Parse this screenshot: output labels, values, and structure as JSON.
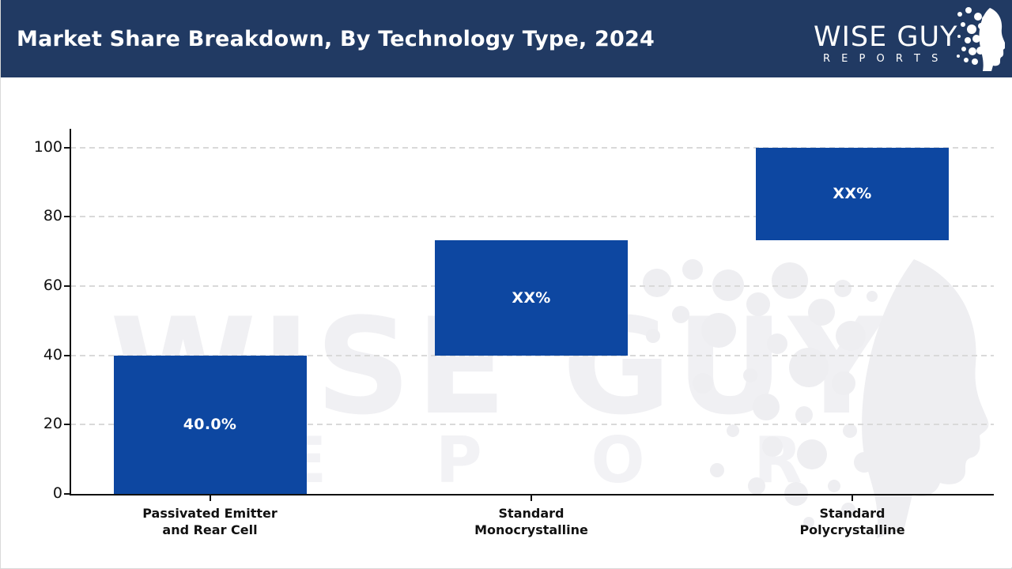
{
  "header": {
    "title": "Market Share Breakdown, By Technology Type, 2024",
    "logo": {
      "line1": "WISE GUY",
      "line2": "R E P O R T S"
    }
  },
  "watermark": {
    "line1": "WISE GUY",
    "line2": "R E P O R T S"
  },
  "colors": {
    "header_bg": "#213A63",
    "bar": "#0D47A1",
    "bar_label": "#ffffff",
    "grid": "#d9d9d9",
    "axis": "#111111",
    "watermark": "#f0f0f3",
    "border": "#d9d9d9"
  },
  "chart_data": {
    "type": "bar",
    "subtype": "waterfall-stacked-percent",
    "title": "Market Share Breakdown, By Technology Type, 2024",
    "categories": [
      {
        "name": "Passivated Emitter and Rear Cell",
        "lines": [
          "Passivated Emitter",
          "and Rear Cell"
        ]
      },
      {
        "name": "Standard Monocrystalline",
        "lines": [
          "Standard",
          "Monocrystalline"
        ]
      },
      {
        "name": "Standard Polycrystalline",
        "lines": [
          "Standard",
          "Polycrystalline"
        ]
      }
    ],
    "series": [
      {
        "name": "Passivated Emitter and Rear Cell",
        "start": 0,
        "end": 40,
        "label": "40.0%"
      },
      {
        "name": "Standard Monocrystalline",
        "start": 40,
        "end": 73.3,
        "label": "XX%"
      },
      {
        "name": "Standard Polycrystalline",
        "start": 73.3,
        "end": 100,
        "label": "XX%"
      }
    ],
    "xlabel": "",
    "ylabel": "",
    "ylim": [
      0,
      100
    ],
    "yticks": [
      0,
      20,
      40,
      60,
      80,
      100
    ],
    "grid": "horizontal-dashed",
    "legend": "none"
  }
}
